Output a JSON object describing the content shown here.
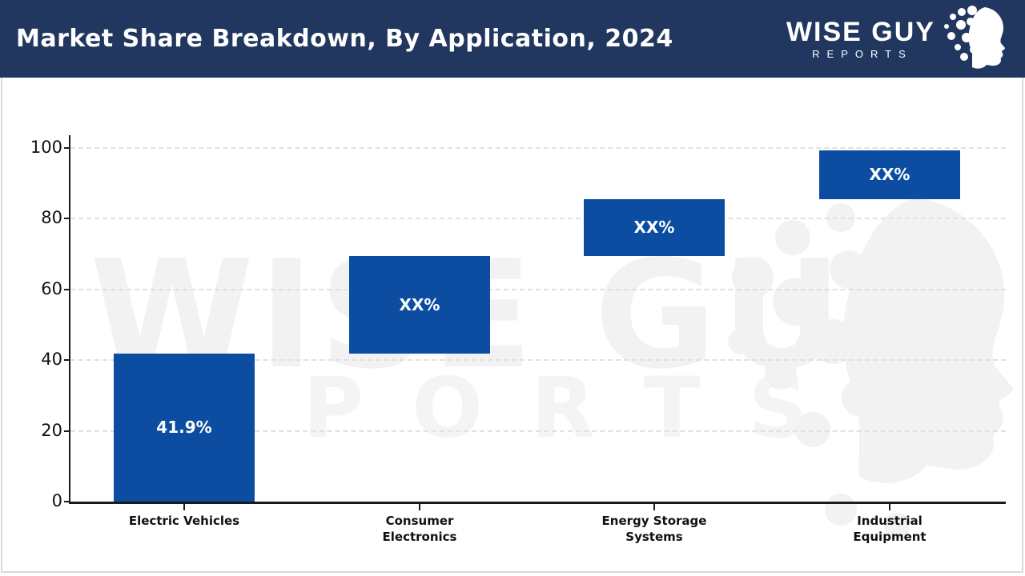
{
  "header": {
    "title": "Market Share Breakdown, By Application, 2024",
    "bg_color": "#213760",
    "logo": {
      "line1": "WISE GUY",
      "line2": "REPORTS"
    }
  },
  "watermark": {
    "line1": "WISE GUY",
    "line2": "P O R T S"
  },
  "chart_data": {
    "type": "bar",
    "subtype": "waterfall",
    "title": "",
    "xlabel": "",
    "ylabel": "",
    "ylim": [
      0,
      100
    ],
    "yticks": [
      0,
      20,
      40,
      60,
      80,
      100
    ],
    "grid": "horizontal-dashed",
    "legend": "none",
    "bar_color": "#0c4da2",
    "categories": [
      "Electric Vehicles",
      "Consumer Electronics",
      "Energy Storage Systems",
      "Industrial Equipment"
    ],
    "category_label_lines": [
      [
        "Electric Vehicles"
      ],
      [
        "Consumer",
        "Electronics"
      ],
      [
        "Energy Storage",
        "Systems"
      ],
      [
        "Industrial",
        "Equipment"
      ]
    ],
    "segments": [
      {
        "category": "Electric Vehicles",
        "start": 0,
        "end": 41.9,
        "label": "41.9%"
      },
      {
        "category": "Consumer Electronics",
        "start": 41.9,
        "end": 69.5,
        "label": "XX%"
      },
      {
        "category": "Energy Storage Systems",
        "start": 69.5,
        "end": 85.6,
        "label": "XX%"
      },
      {
        "category": "Industrial Equipment",
        "start": 85.6,
        "end": 99.3,
        "label": "XX%"
      }
    ]
  }
}
